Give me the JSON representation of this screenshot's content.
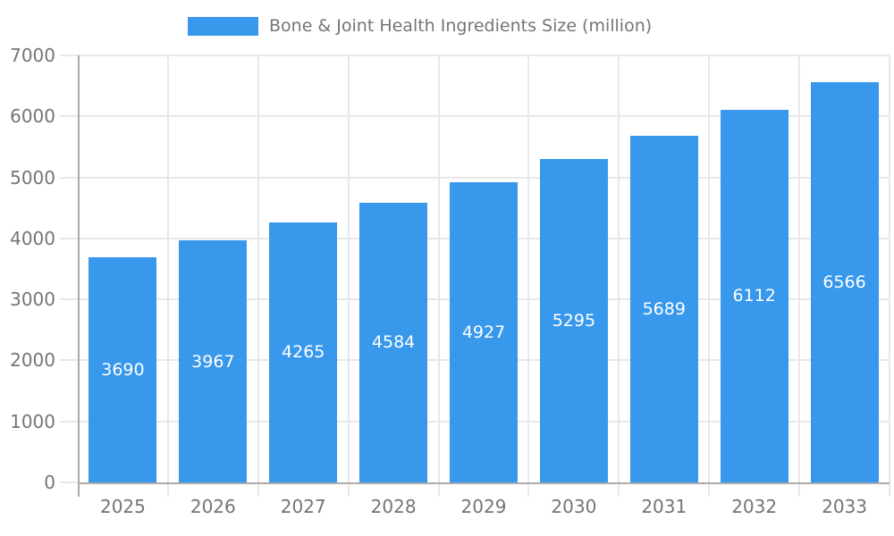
{
  "chart_data": {
    "type": "bar",
    "title": "Bone & Joint Health Ingredients Size (million)",
    "categories": [
      "2025",
      "2026",
      "2027",
      "2028",
      "2029",
      "2030",
      "2031",
      "2032",
      "2033"
    ],
    "values": [
      3690,
      3967,
      4265,
      4584,
      4927,
      5295,
      5689,
      6112,
      6566
    ],
    "xlabel": "",
    "ylabel": "",
    "ylim": [
      0,
      7000
    ],
    "ytick_step": 1000,
    "grid": true,
    "legend_position": "top",
    "bar_color": "#3898ec",
    "value_label_color": "#ffffff",
    "grid_color": "#e8e8e8",
    "axis_color": "#ababab",
    "tick_label_color": "#757575",
    "background_color": "#ffffff"
  }
}
